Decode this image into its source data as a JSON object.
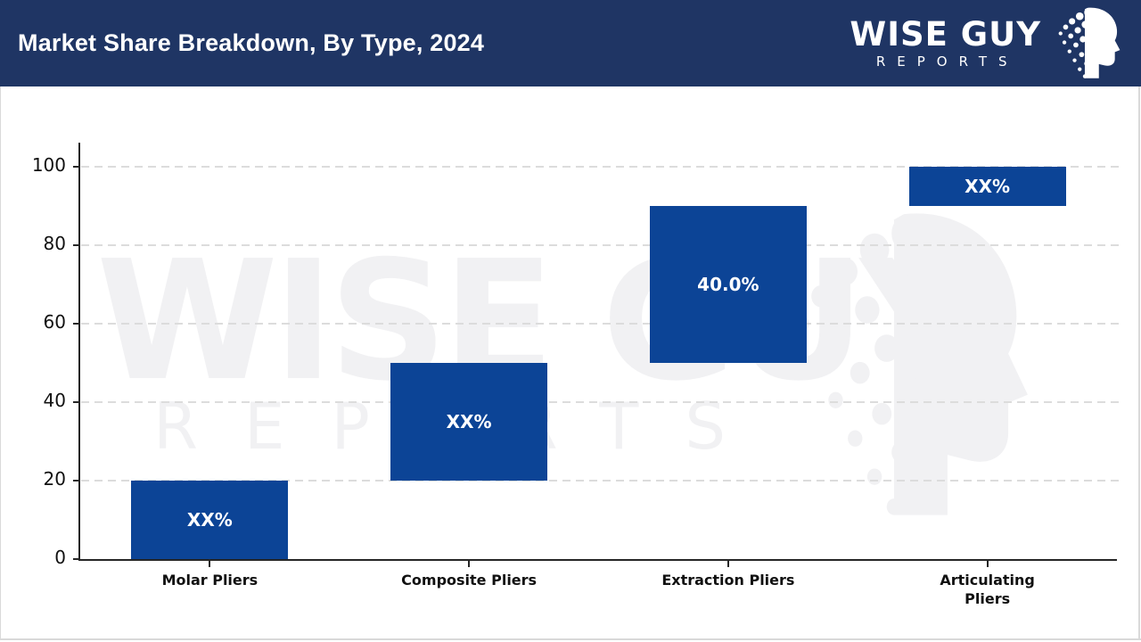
{
  "header": {
    "title": "Market Share Breakdown, By Type, 2024",
    "logo": {
      "wordmark": "WISE GUY",
      "subtitle": "REPORTS"
    }
  },
  "watermark": {
    "wordmark": "WISE GUY",
    "subtitle": "REPORTS"
  },
  "colors": {
    "header_bg": "#1f3564",
    "bar": "#0c4496",
    "axis": "#262626",
    "grid": "#dcdcdc",
    "watermark": "#f1f1f3",
    "frame": "#d9d9d9",
    "title_text": "#ffffff",
    "bar_label": "#ffffff",
    "tick_label": "#111111"
  },
  "chart_data": {
    "type": "bar",
    "variant": "waterfall",
    "title": "Market Share Breakdown, By Type, 2024",
    "categories": [
      "Molar Pliers",
      "Composite Pliers",
      "Extraction Pliers",
      "Articulating\nPliers"
    ],
    "segments": [
      {
        "category": "Molar Pliers",
        "start": 0,
        "end": 20,
        "label": "XX%"
      },
      {
        "category": "Composite Pliers",
        "start": 20,
        "end": 50,
        "label": "XX%"
      },
      {
        "category": "Extraction Pliers",
        "start": 50,
        "end": 90,
        "label": "40.0%"
      },
      {
        "category": "Articulating\nPliers",
        "start": 90,
        "end": 100,
        "label": "XX%"
      }
    ],
    "xlabel": "",
    "ylabel": "",
    "ylim": [
      0,
      100
    ],
    "yticks": [
      0,
      20,
      40,
      60,
      80,
      100
    ],
    "grid": "horizontal-dashed",
    "legend": "none",
    "bar_color": "#0c4496",
    "bar_label_color": "#ffffff"
  }
}
